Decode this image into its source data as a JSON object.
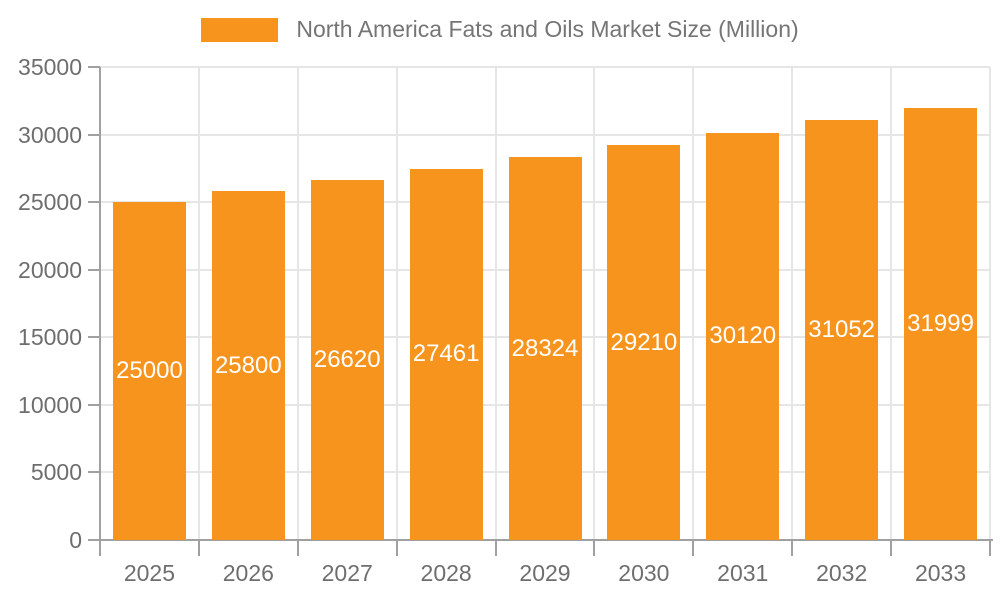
{
  "chart_data": {
    "type": "bar",
    "title": "North America Fats and Oils Market Size (Million)",
    "categories": [
      "2025",
      "2026",
      "2027",
      "2028",
      "2029",
      "2030",
      "2031",
      "2032",
      "2033"
    ],
    "values": [
      25000,
      25800,
      26620,
      27461,
      28324,
      29210,
      30120,
      31052,
      31999
    ],
    "xlabel": "",
    "ylabel": "",
    "ylim": [
      0,
      35000
    ],
    "yticks": [
      0,
      5000,
      10000,
      15000,
      20000,
      25000,
      30000,
      35000
    ],
    "bar_labels_visible": true,
    "grid": true,
    "legend_position": "top-center"
  },
  "colors": {
    "bar": "#F7941E",
    "bar_label": "#FFFFFF",
    "grid": "#E6E6E6",
    "axis": "#A0A0A0",
    "axis_text": "#6E6E6E",
    "legend_text": "#757575",
    "background": "#FFFFFF"
  }
}
